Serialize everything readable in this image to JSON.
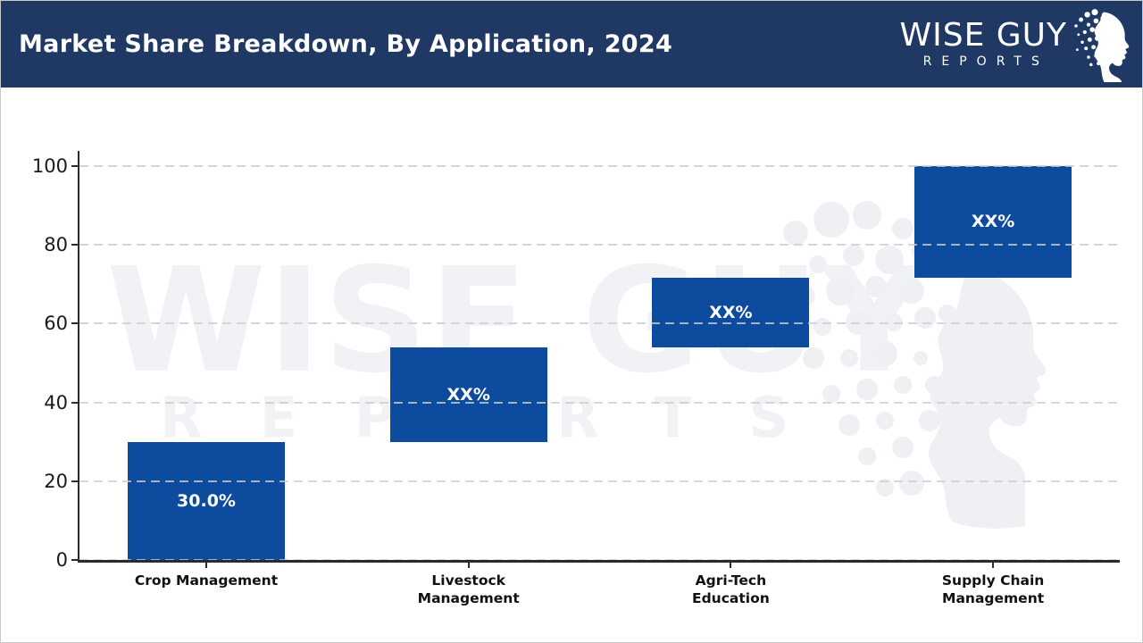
{
  "header": {
    "title": "Market Share Breakdown, By Application, 2024",
    "logo": {
      "name": "WISE GUY",
      "sub": "REPORTS"
    }
  },
  "watermark": {
    "name": "WISE GUY",
    "sub": "REPORTS"
  },
  "chart_data": {
    "type": "bar",
    "subtype": "waterfall",
    "title": "Market Share Breakdown, By Application, 2024",
    "categories": [
      "Crop Management",
      "Livestock\nManagement",
      "Agri-Tech\nEducation",
      "Supply Chain\nManagement"
    ],
    "segments": [
      {
        "category": "Crop Management",
        "start": 0,
        "end": 30,
        "value": 30,
        "label": "30.0%"
      },
      {
        "category": "Livestock Management",
        "start": 30,
        "end": 54,
        "value": 24,
        "label": "XX%"
      },
      {
        "category": "Agri-Tech Education",
        "start": 54,
        "end": 71.7,
        "value": 17.7,
        "label": "XX%"
      },
      {
        "category": "Supply Chain Management",
        "start": 71.7,
        "end": 100,
        "value": 28.3,
        "label": "XX%"
      }
    ],
    "xlabel": "",
    "ylabel": "",
    "ylim": [
      0,
      100
    ],
    "yticks": [
      0,
      20,
      40,
      60,
      80,
      100
    ],
    "grid": true,
    "legend": false,
    "bar_color": "#0d4b9f",
    "bar_label_color": "#ffffff",
    "grid_color": "#cdcdcd",
    "axis_color": "#2b2b2b"
  },
  "colors": {
    "header_bg": "#203864",
    "header_text": "#ffffff",
    "bar": "#0d4b9f",
    "watermark": "#f1f2f5",
    "page_border": "#c9c9c9"
  }
}
